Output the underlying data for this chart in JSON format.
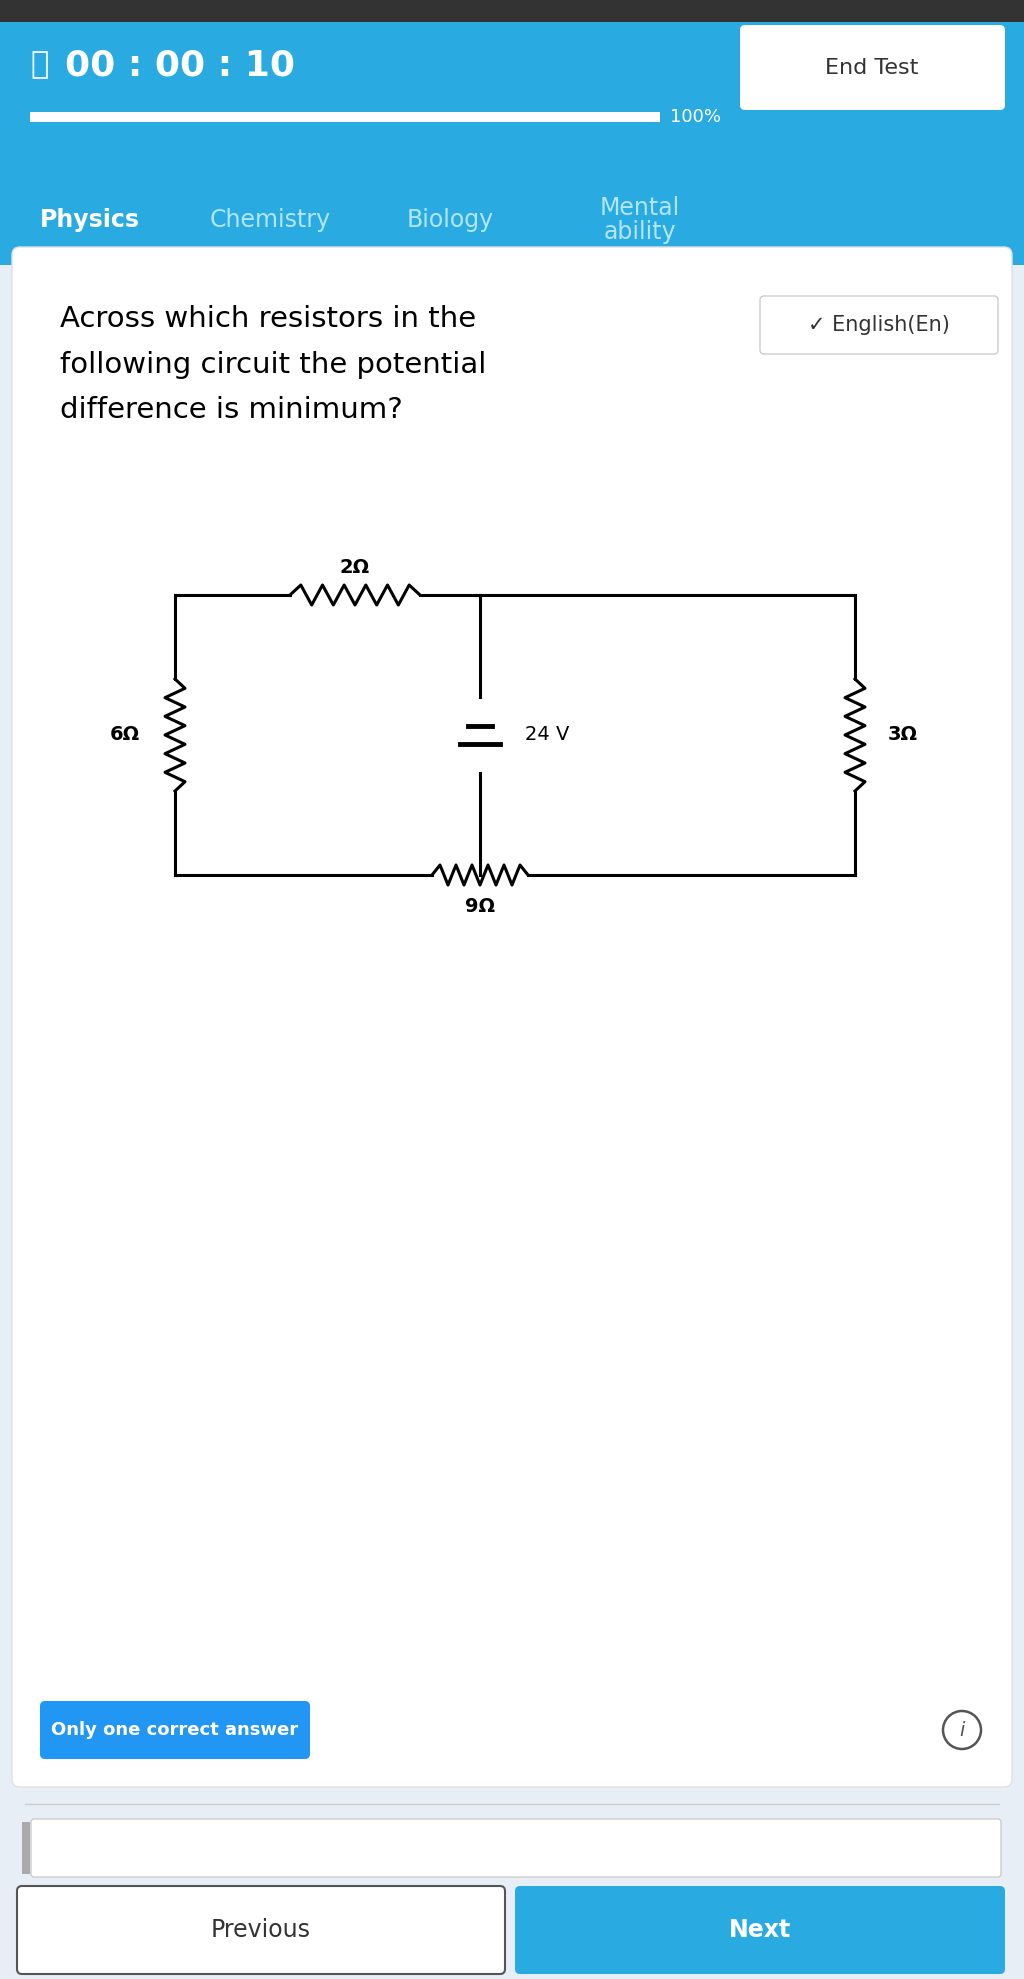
{
  "bg_top_color": "#29ABE2",
  "bg_body_color": "#E8EEF5",
  "bg_card_color": "#FFFFFF",
  "timer_text": "00 : 00 : 10",
  "progress_pct": "100%",
  "end_test_text": "End Test",
  "nav_items": [
    "Physics",
    "Chemistry",
    "Biology",
    "Mental\nability"
  ],
  "nav_active": "Physics",
  "nav_active_color": "#FFFFFF",
  "nav_inactive_color": "#B3E5FC",
  "english_text": "✓ English(En)",
  "question_text": "Across which resistors in the\nfollowing circuit the potential\ndifference is minimum?",
  "circuit": {
    "R_top": "2Ω",
    "R_left": "6Ω",
    "V_center": "24 V",
    "R_right": "3Ω",
    "R_bottom": "9Ω"
  },
  "only_one_btn_text": "Only one correct answer",
  "only_one_btn_color": "#2196F3",
  "previous_btn_text": "Previous",
  "next_btn_text": "Next",
  "next_btn_color": "#29ABE2",
  "line_color": "#000000",
  "text_color": "#000000",
  "underline_color": "#FFFFFF"
}
